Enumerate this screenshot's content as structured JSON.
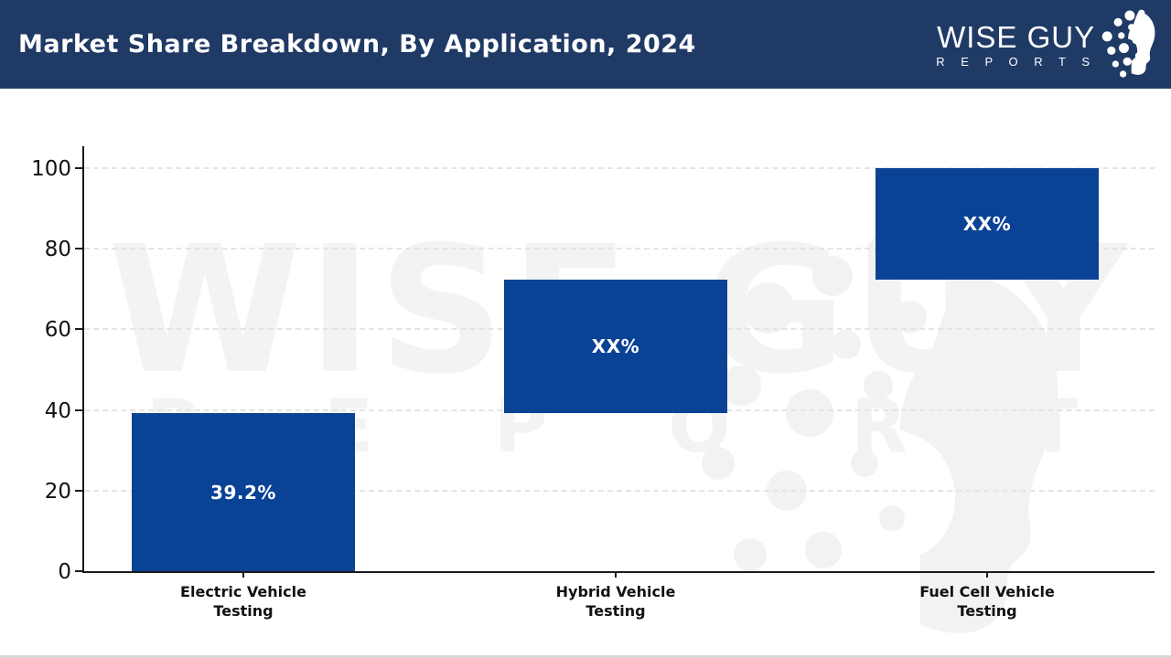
{
  "header": {
    "title": "Market Share Breakdown, By Application, 2024",
    "bg_color": "#203a66",
    "logo": {
      "line1": "WISE GUY",
      "line2": "R E P O R T S"
    }
  },
  "watermark": {
    "line1": "WISE GUY",
    "line2": "R E P O R T S"
  },
  "chart_data": {
    "type": "bar",
    "subtype": "waterfall",
    "title": "Market Share Breakdown, By Application, 2024",
    "categories": [
      "Electric Vehicle Testing",
      "Hybrid Vehicle Testing",
      "Fuel Cell Vehicle Testing"
    ],
    "category_lines": [
      [
        "Electric Vehicle",
        "Testing"
      ],
      [
        "Hybrid Vehicle",
        "Testing"
      ],
      [
        "Fuel Cell Vehicle",
        "Testing"
      ]
    ],
    "segments": [
      {
        "category": "Electric Vehicle Testing",
        "start": 0,
        "end": 39.2,
        "label": "39.2%"
      },
      {
        "category": "Hybrid Vehicle Testing",
        "start": 39.2,
        "end": 72.4,
        "label": "XX%"
      },
      {
        "category": "Fuel Cell Vehicle Testing",
        "start": 72.4,
        "end": 100,
        "label": "XX%"
      }
    ],
    "ylim": [
      0,
      100
    ],
    "yticks": [
      0,
      20,
      40,
      60,
      80,
      100
    ],
    "xlabel": "",
    "ylabel": "",
    "grid": "horizontal-dashed",
    "legend": "none",
    "bar_color": "#0a4296",
    "bar_label_color": "#ffffff"
  }
}
